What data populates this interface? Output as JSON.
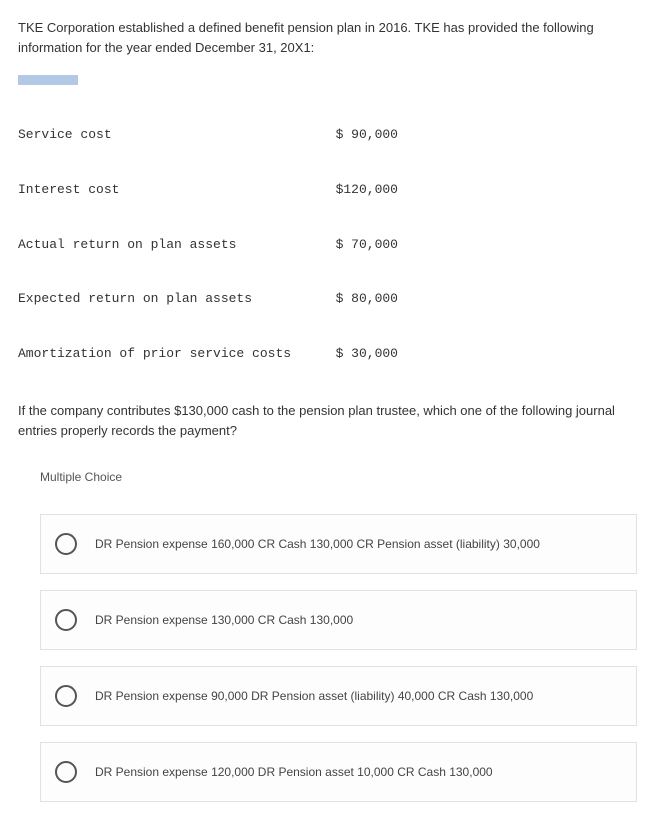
{
  "intro": "TKE Corporation established a defined benefit pension plan in 2016. TKE has provided the following information for the year ended December 31, 20X1:",
  "rows": [
    {
      "label": "Service cost",
      "amount": "$ 90,000"
    },
    {
      "label": "Interest cost",
      "amount": "$120,000"
    },
    {
      "label": "Actual return on plan assets",
      "amount": "$ 70,000"
    },
    {
      "label": "Expected return on plan assets",
      "amount": "$ 80,000"
    },
    {
      "label": "Amortization of prior service costs",
      "amount": "$ 30,000"
    }
  ],
  "question2": "If the company contributes $130,000 cash to the pension plan trustee, which one of the following journal entries properly records the payment?",
  "mc_header": "Multiple Choice",
  "choices": [
    "DR Pension expense 160,000 CR Cash 130,000 CR Pension asset (liability) 30,000",
    "DR Pension expense 130,000 CR Cash 130,000",
    "DR Pension expense 90,000 DR Pension asset (liability) 40,000 CR Cash 130,000",
    "DR Pension expense 120,000 DR Pension asset 10,000 CR Cash 130,000"
  ]
}
